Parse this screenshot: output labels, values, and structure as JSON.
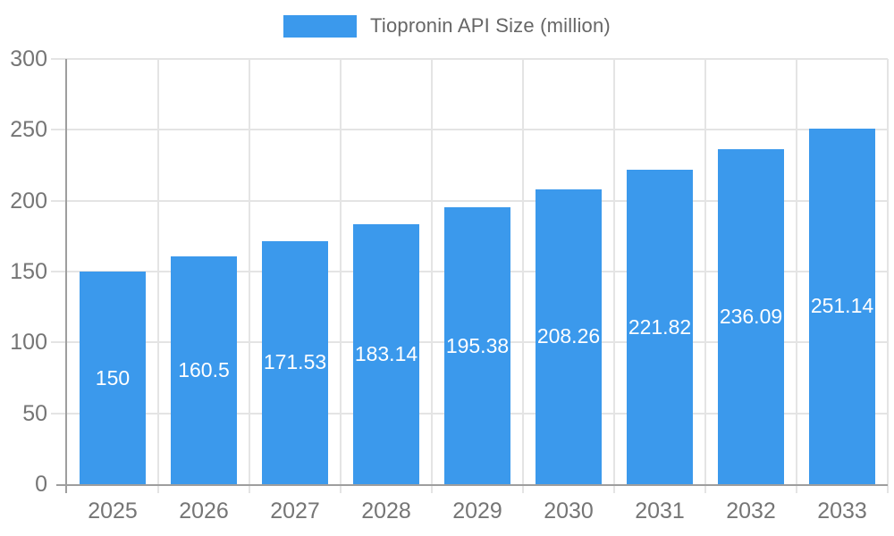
{
  "legend": {
    "label": "Tiopronin API Size (million)"
  },
  "chart_data": {
    "type": "bar",
    "title": "Tiopronin API Size (million)",
    "categories": [
      "2025",
      "2026",
      "2027",
      "2028",
      "2029",
      "2030",
      "2031",
      "2032",
      "2033"
    ],
    "values": [
      150,
      160.5,
      171.53,
      183.14,
      195.38,
      208.26,
      221.82,
      236.09,
      251.14
    ],
    "value_labels": [
      "150",
      "160.5",
      "171.53",
      "183.14",
      "195.38",
      "208.26",
      "221.82",
      "236.09",
      "251.14"
    ],
    "xlabel": "",
    "ylabel": "",
    "ylim": [
      0,
      300
    ],
    "yticks": [
      0,
      50,
      100,
      150,
      200,
      250,
      300
    ],
    "grid": true,
    "legend_position": "top-center",
    "colors": {
      "bar": "#3B99EC",
      "axis": "#9E9E9E",
      "grid": "#E4E4E4",
      "tick_text": "#757575",
      "legend_text": "#666666",
      "bar_label": "#FFFFFF",
      "background": "#FFFFFF"
    }
  }
}
